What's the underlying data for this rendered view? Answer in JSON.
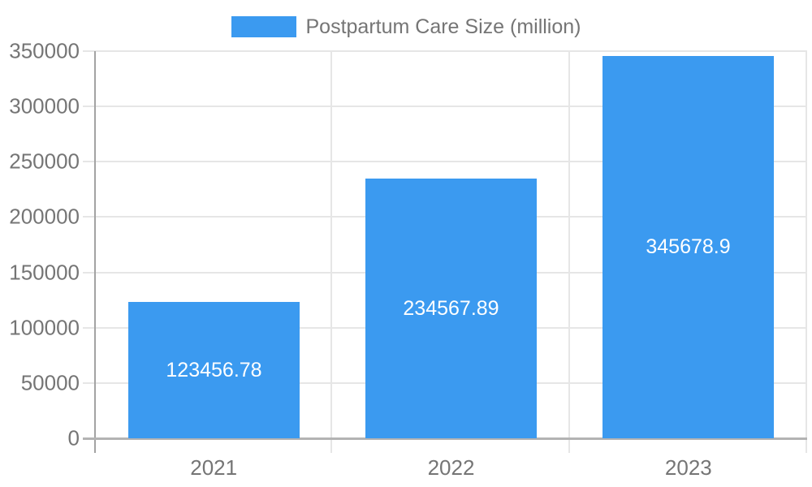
{
  "chart_data": {
    "type": "bar",
    "title": "",
    "legend": {
      "label": "Postpartum Care Size (million)",
      "position": "top-center"
    },
    "categories": [
      "2021",
      "2022",
      "2023"
    ],
    "series": [
      {
        "name": "Postpartum Care Size (million)",
        "values": [
          123456.78,
          234567.89,
          345678.9
        ]
      }
    ],
    "value_labels": [
      "123456.78",
      "234567.89",
      "345678.9"
    ],
    "xlabel": "",
    "ylabel": "",
    "ylim": [
      0,
      350000
    ],
    "y_ticks": [
      0,
      50000,
      100000,
      150000,
      200000,
      250000,
      300000,
      350000
    ],
    "y_tick_labels": [
      "0",
      "50000",
      "100000",
      "150000",
      "200000",
      "250000",
      "300000",
      "350000"
    ],
    "grid": true,
    "colors": {
      "bar": "#3B9AF0",
      "axis_text": "#757575",
      "legend_text": "#757575",
      "grid_line": "#E6E6E6",
      "x_axis_line": "#B3B3B3",
      "y_axis_line": "#A3A3A3",
      "bar_label_text": "#FFFFFF",
      "background": "#FFFFFF"
    }
  }
}
